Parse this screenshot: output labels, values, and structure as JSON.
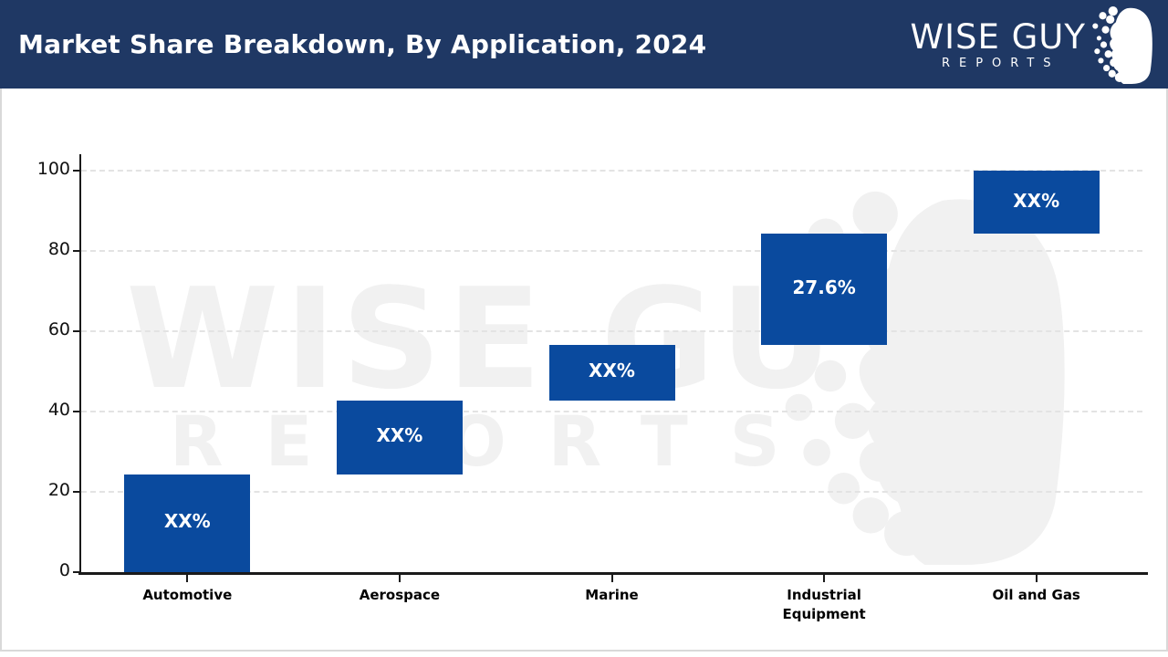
{
  "header": {
    "title": "Market Share Breakdown, By Application, 2024",
    "logo": {
      "brand_top": "WISE GUY",
      "brand_bottom": "REPORTS"
    }
  },
  "watermark": {
    "line1": "WISE GUY",
    "line2": "REPORTS"
  },
  "colors": {
    "header_bg": "#1f3864",
    "bar": "#0a4a9e",
    "grid": "#e3e3e3",
    "axis": "#1a1a1a",
    "watermark": "#f1f1f1",
    "frame": "#d9d9d9",
    "bar_label": "#ffffff"
  },
  "chart_data": {
    "type": "bar",
    "variant": "floating-waterfall",
    "title": "Market Share Breakdown, By Application, 2024",
    "categories": [
      "Automotive",
      "Aerospace",
      "Marine",
      "Industrial Equipment",
      "Oil and Gas"
    ],
    "segments": [
      {
        "category": "Automotive",
        "start": 0,
        "end": 24.4,
        "size": 24.4,
        "label": "XX%"
      },
      {
        "category": "Aerospace",
        "start": 24.4,
        "end": 42.8,
        "size": 18.4,
        "label": "XX%"
      },
      {
        "category": "Marine",
        "start": 42.8,
        "end": 56.7,
        "size": 13.9,
        "label": "XX%"
      },
      {
        "category": "Industrial Equipment",
        "start": 56.7,
        "end": 84.3,
        "size": 27.6,
        "label": "27.6%"
      },
      {
        "category": "Oil and Gas",
        "start": 84.3,
        "end": 100,
        "size": 15.7,
        "label": "XX%"
      }
    ],
    "xlabel": "",
    "ylabel": "",
    "ylim": [
      0,
      100
    ],
    "yticks": [
      0,
      20,
      40,
      60,
      80,
      100
    ],
    "grid": "horizontal-dashed",
    "legend": "none"
  }
}
